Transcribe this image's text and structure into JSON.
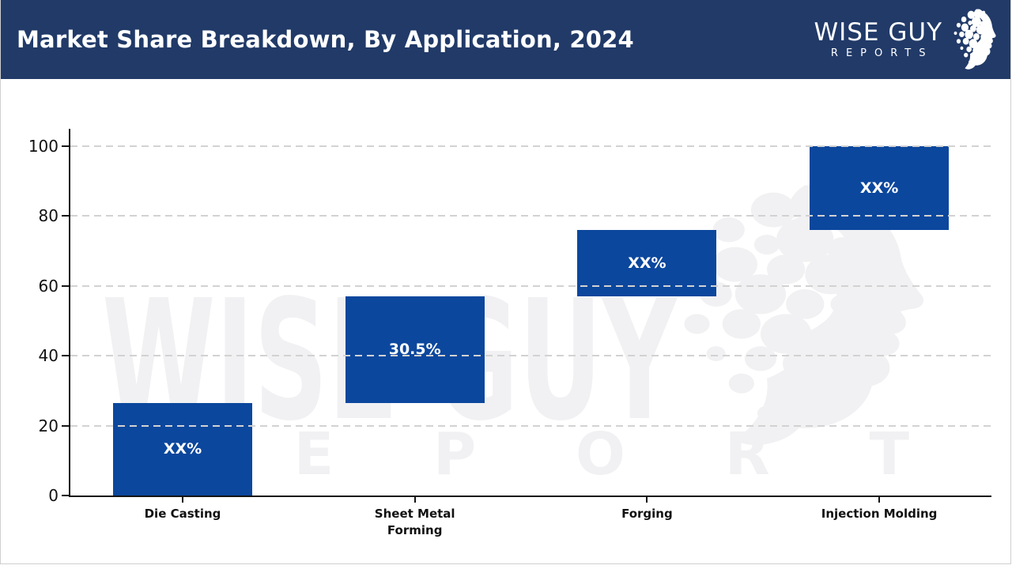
{
  "header": {
    "title": "Market Share Breakdown, By Application, 2024",
    "logo": {
      "name_top": "WISE GUY",
      "name_bottom": "REPORTS"
    }
  },
  "watermark": {
    "text_top": "WISE GUY",
    "text_bottom": "R E P O R T S"
  },
  "colors": {
    "header_bg": "#213A68",
    "bar_fill": "#0B479D",
    "bar_label": "#FFFFFF",
    "grid": "#D2D2D2",
    "axis": "#141414",
    "tick_label": "#111111",
    "watermark": "#F1F1F3"
  },
  "chart_data": {
    "type": "bar",
    "subtype": "waterfall-floating-bars",
    "title": "Market Share Breakdown, By Application, 2024",
    "categories": [
      "Die Casting",
      "Sheet Metal Forming",
      "Forging",
      "Injection Molding"
    ],
    "category_label_lines": [
      [
        "Die Casting"
      ],
      [
        "Sheet Metal",
        "Forming"
      ],
      [
        "Forging"
      ],
      [
        "Injection Molding"
      ]
    ],
    "segments": [
      {
        "category": "Die Casting",
        "start": 0,
        "end": 26.5,
        "value_label": "XX%"
      },
      {
        "category": "Sheet Metal Forming",
        "start": 26.5,
        "end": 57,
        "value_label": "30.5%"
      },
      {
        "category": "Forging",
        "start": 57,
        "end": 76,
        "value_label": "XX%"
      },
      {
        "category": "Injection Molding",
        "start": 76,
        "end": 100,
        "value_label": "XX%"
      }
    ],
    "y_ticks": [
      0,
      20,
      40,
      60,
      80,
      100
    ],
    "ylim": [
      0,
      100
    ],
    "xlabel": "",
    "ylabel": "",
    "grid": "horizontal-dashed-over-bars",
    "legend": "none"
  }
}
